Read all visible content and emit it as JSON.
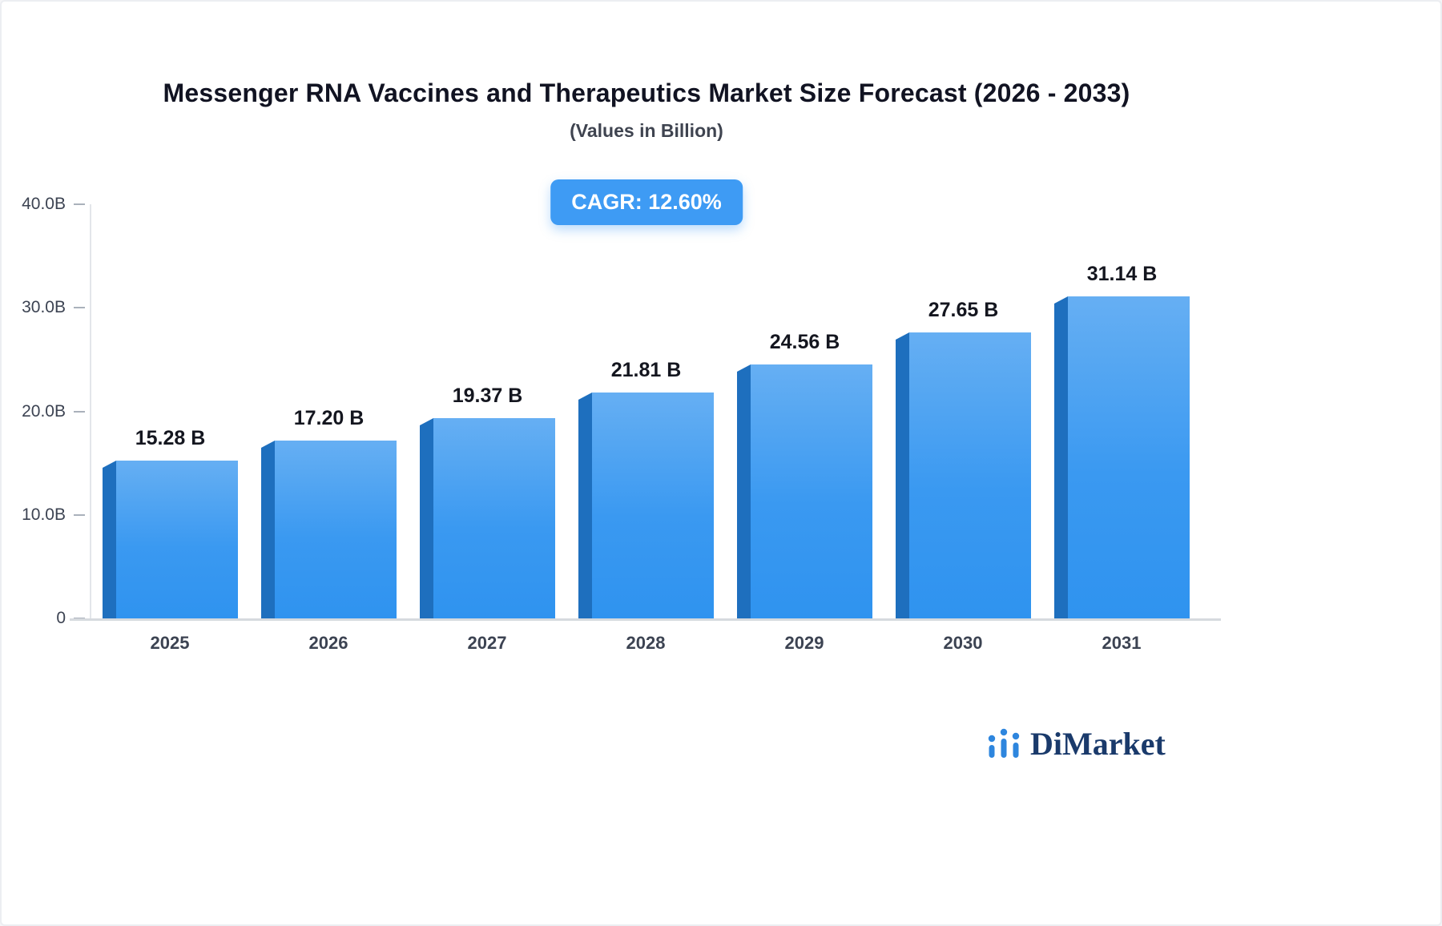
{
  "header": {
    "title": "Messenger RNA Vaccines and Therapeutics Market Size Forecast (2026 - 2033)",
    "subtitle": "(Values in Billion)"
  },
  "badge": {
    "label": "CAGR: 12.60%",
    "color": "#3e9bf4"
  },
  "chart_data": {
    "type": "bar",
    "title": "Messenger RNA Vaccines and Therapeutics Market Size Forecast (2026 - 2033)",
    "subtitle": "(Values in Billion)",
    "categories": [
      "2025",
      "2026",
      "2027",
      "2028",
      "2029",
      "2030",
      "2031"
    ],
    "values": [
      15.28,
      17.2,
      19.37,
      21.81,
      24.56,
      27.65,
      31.14
    ],
    "value_labels": [
      "15.28 B",
      "17.20 B",
      "19.37 B",
      "21.81 B",
      "24.56 B",
      "27.65 B",
      "31.14 B"
    ],
    "xlabel": "",
    "ylabel": "",
    "ylim": [
      0,
      40
    ],
    "yticks": [
      {
        "label": "40.0B",
        "value": 40
      },
      {
        "label": "30.0B",
        "value": 30
      },
      {
        "label": "20.0B",
        "value": 20
      },
      {
        "label": "10.0B",
        "value": 10
      },
      {
        "label": "0",
        "value": 0
      }
    ],
    "grid": false,
    "legend": "none",
    "bar_color_top": "#66aff3",
    "bar_color_bottom": "#2f93ef",
    "bar_side_color": "#1e6fbe"
  },
  "logo": {
    "text": "DiMarket",
    "icon": "bar-chart-icon",
    "text_color": "#1a3a6b",
    "icon_color": "#2e86de"
  }
}
